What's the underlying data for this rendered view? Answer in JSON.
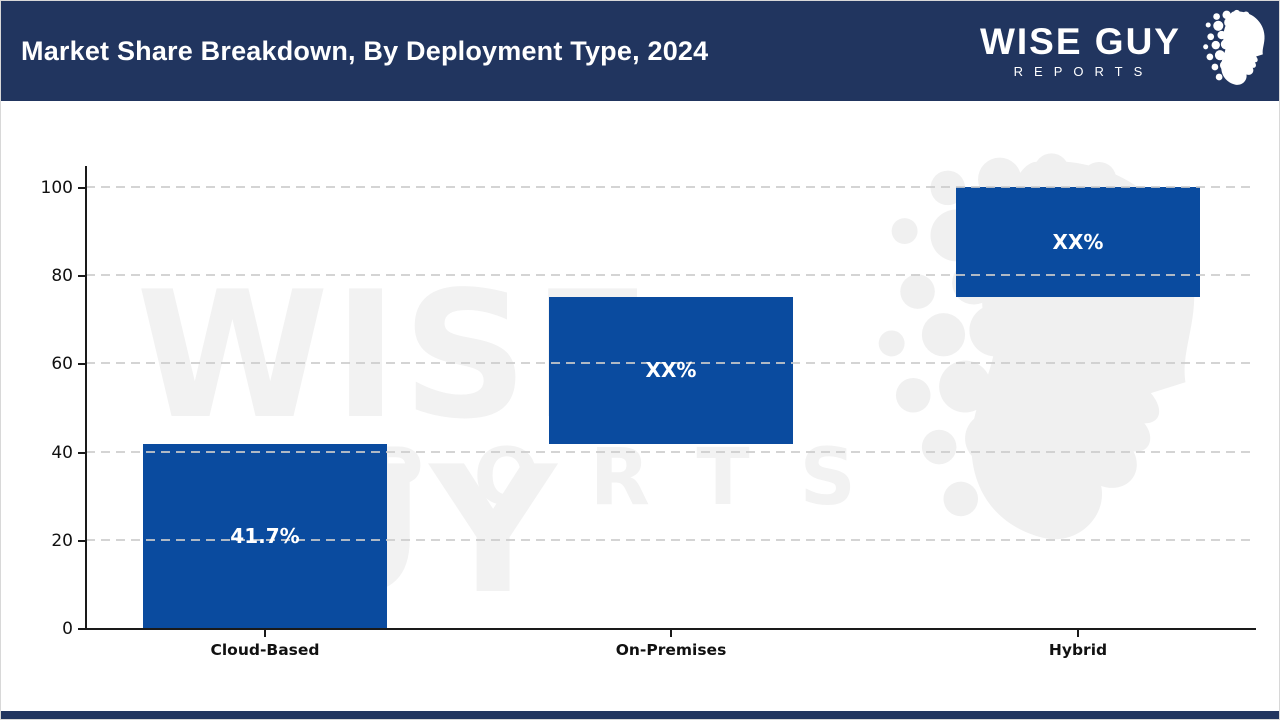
{
  "page": {
    "background": "#ffffff",
    "border_color": "#d8d8d8"
  },
  "header": {
    "title": "Market Share Breakdown, By Deployment Type, 2024",
    "background": "#21355f",
    "text_color": "#ffffff",
    "logo": {
      "line1": "WISE GUY",
      "line2": "REPORTS",
      "head_icon": "dotted-head-profile-icon"
    }
  },
  "footer": {
    "background": "#21355f"
  },
  "watermark": {
    "line1": "WISE GUY",
    "line2": "REPORTS",
    "color": "#f2f2f2"
  },
  "chart_data": {
    "type": "bar",
    "subtype": "waterfall",
    "title": "Market Share Breakdown, By Deployment Type, 2024",
    "categories": [
      "Cloud-Based",
      "On-Premises",
      "Hybrid"
    ],
    "series": [
      {
        "name": "Market Share",
        "segments": [
          {
            "category": "Cloud-Based",
            "start": 0,
            "end": 41.7,
            "label": "41.7%"
          },
          {
            "category": "On-Premises",
            "start": 41.7,
            "end": 75.1,
            "label": "XX%"
          },
          {
            "category": "Hybrid",
            "start": 75.1,
            "end": 100,
            "label": "XX%"
          }
        ]
      }
    ],
    "xlabel": "",
    "ylabel": "",
    "yticks": [
      0,
      20,
      40,
      60,
      80,
      100
    ],
    "ylim": [
      0,
      105
    ],
    "bar_color": "#0a4b9f",
    "bar_label_color": "#ffffff",
    "axis_color": "#1a1a1a",
    "grid": {
      "horizontal": true,
      "style": "dashed",
      "color": "#cccccc",
      "above_bars": true
    },
    "legend": "none"
  }
}
